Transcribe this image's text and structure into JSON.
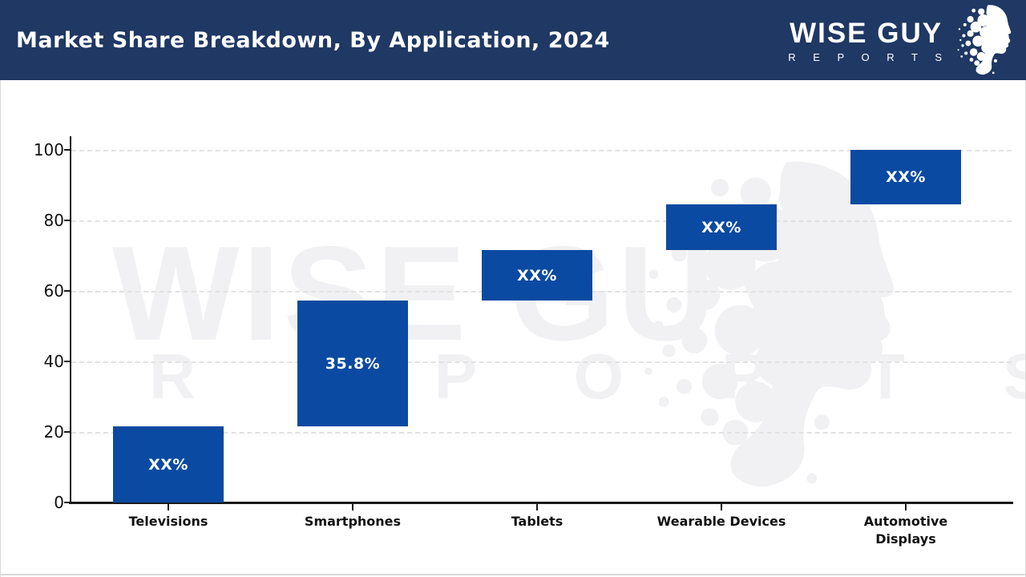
{
  "header": {
    "title": "Market Share Breakdown, By Application, 2024",
    "bg_color": "#1f3864",
    "logo": {
      "line1": "WISE GUY",
      "line2": "R E P O R T S"
    }
  },
  "watermark": {
    "line1": "WISE GUY",
    "line2": "R E P O R T S"
  },
  "chart_data": {
    "type": "bar",
    "subtype": "waterfall",
    "title": "Market Share Breakdown, By Application, 2024",
    "xlabel": "",
    "ylabel": "",
    "categories": [
      "Televisions",
      "Smartphones",
      "Tablets",
      "Wearable Devices",
      "Automotive Displays"
    ],
    "tick_labels": [
      "Televisions",
      "Smartphones",
      "Tablets",
      "Wearable Devices",
      "Automotive\nDisplays"
    ],
    "segments": [
      {
        "category": "Televisions",
        "label": "XX%",
        "start": 0,
        "end": 21.5
      },
      {
        "category": "Smartphones",
        "label": "35.8%",
        "start": 21.5,
        "end": 57.3
      },
      {
        "category": "Tablets",
        "label": "XX%",
        "start": 57.3,
        "end": 71.5
      },
      {
        "category": "Wearable Devices",
        "label": "XX%",
        "start": 71.5,
        "end": 84.5
      },
      {
        "category": "Automotive Displays",
        "label": "XX%",
        "start": 84.5,
        "end": 100
      }
    ],
    "visible_value_labels": [
      "XX%",
      "35.8%",
      "XX%",
      "XX%",
      "XX%"
    ],
    "y_ticks": [
      0,
      20,
      40,
      60,
      80,
      100
    ],
    "ylim": [
      0,
      104
    ],
    "grid": "horizontal-dashed",
    "legend": "none",
    "bar_color": "#0b4aa2",
    "bar_label_color": "#ffffff",
    "axis_color": "#1a1a1a",
    "grid_color": "#e2e2e2"
  }
}
